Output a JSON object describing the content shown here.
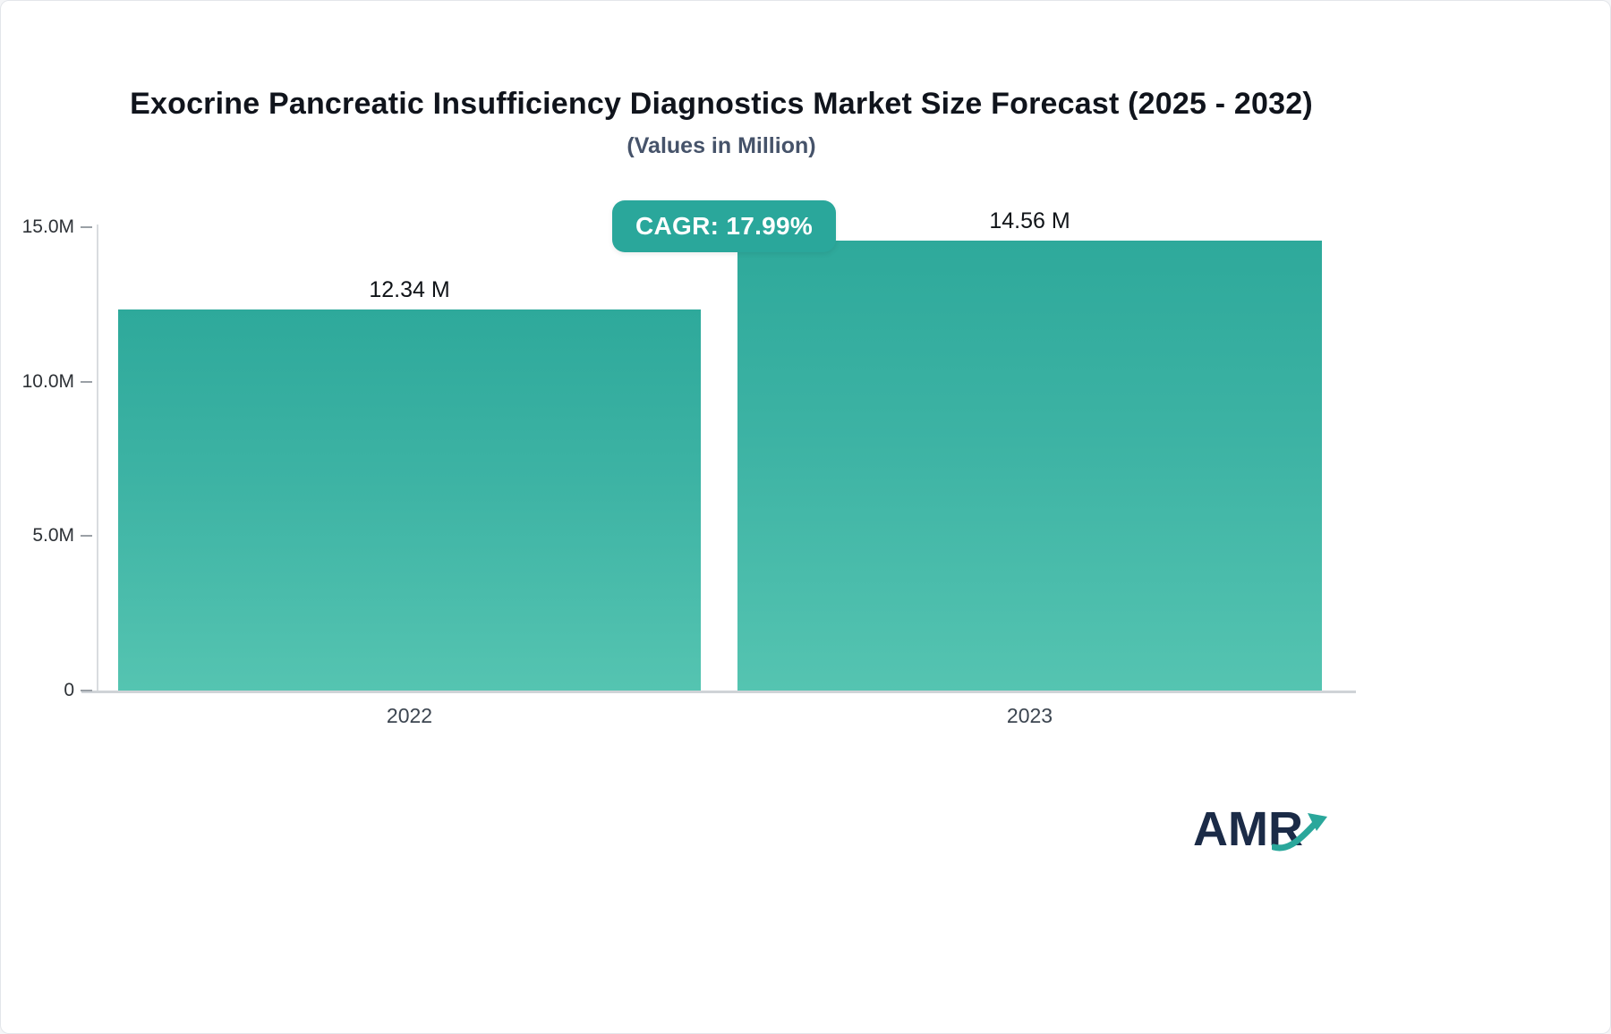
{
  "title": "Exocrine Pancreatic Insufficiency Diagnostics Market Size Forecast (2025 - 2032)",
  "subtitle": "(Values in Million)",
  "badge": {
    "label": "CAGR: 17.99%"
  },
  "logo": {
    "text": "AMR"
  },
  "chart_data": {
    "type": "bar",
    "title": "Exocrine Pancreatic Insufficiency Diagnostics Market Size Forecast (2025 - 2032)",
    "subtitle": "(Values in Million)",
    "categories": [
      "2022",
      "2023"
    ],
    "values": [
      12.34,
      14.56
    ],
    "value_labels": [
      "12.34 M",
      "14.56 M"
    ],
    "unit": "Million",
    "cagr": "17.99%",
    "xlabel": "",
    "ylabel": "",
    "ylim": [
      0,
      15
    ],
    "yticks": [
      {
        "value": 0,
        "label": "0"
      },
      {
        "value": 5,
        "label": "5.0M"
      },
      {
        "value": 10,
        "label": "10.0M"
      },
      {
        "value": 15,
        "label": "15.0M"
      }
    ],
    "grid": false,
    "legend": "none",
    "colors": {
      "bar_gradient_top": "#2ea99b",
      "bar_gradient_bottom": "#55c4b1",
      "badge_background": "#2aa79b",
      "logo_text": "#1b2b47",
      "logo_arrow": "#2aa79b"
    }
  }
}
